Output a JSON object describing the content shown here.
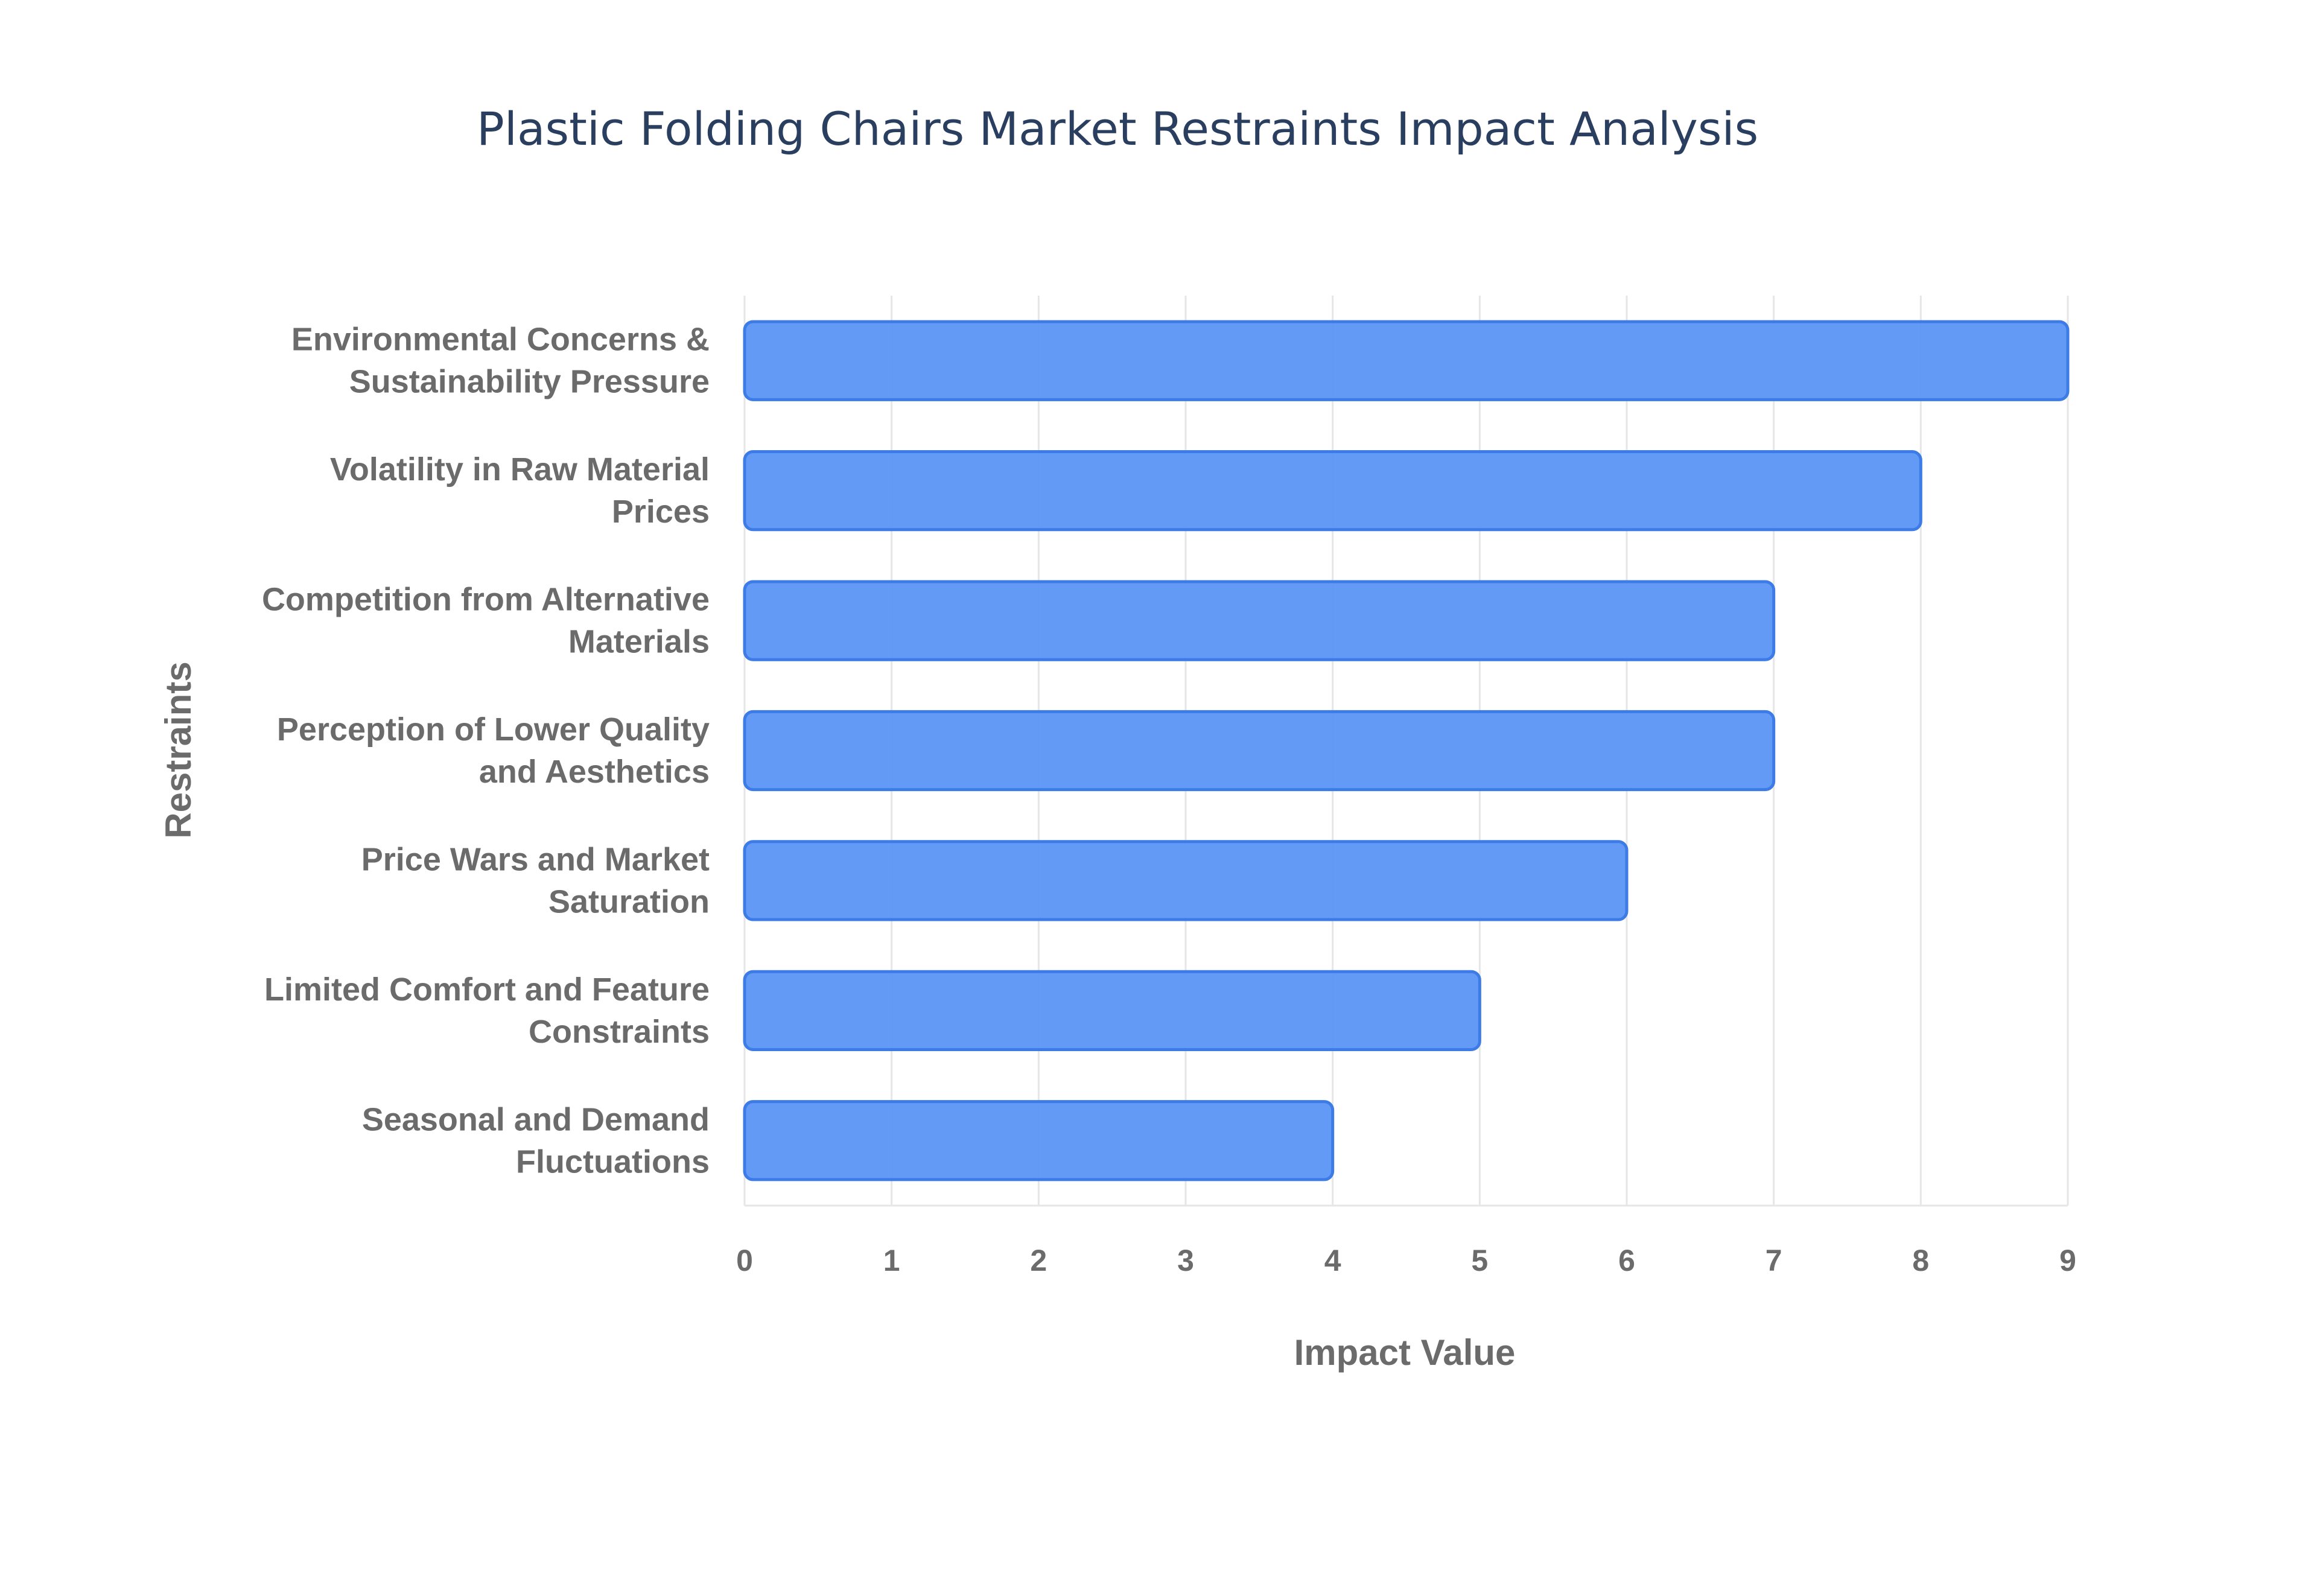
{
  "chart_data": {
    "type": "bar",
    "orientation": "horizontal",
    "title": "Plastic Folding Chairs Market Restraints Impact Analysis",
    "xlabel": "Impact Value",
    "ylabel": "Restraints",
    "xlim": [
      0,
      9
    ],
    "xticks": [
      "0",
      "1",
      "2",
      "3",
      "4",
      "5",
      "6",
      "7",
      "8",
      "9"
    ],
    "grid": true,
    "legend": "none",
    "bar_color": "#5b95f5",
    "categories": [
      {
        "label_lines": [
          "Environmental Concerns &",
          "Sustainability Pressure"
        ]
      },
      {
        "label_lines": [
          "Volatility in Raw Material",
          "Prices"
        ]
      },
      {
        "label_lines": [
          "Competition from Alternative",
          "Materials"
        ]
      },
      {
        "label_lines": [
          "Perception of Lower Quality",
          "and Aesthetics"
        ]
      },
      {
        "label_lines": [
          "Price Wars and Market",
          "Saturation"
        ]
      },
      {
        "label_lines": [
          "Limited Comfort and Feature",
          "Constraints"
        ]
      },
      {
        "label_lines": [
          "Seasonal and Demand",
          "Fluctuations"
        ]
      }
    ],
    "values": [
      9,
      8,
      7,
      7,
      6,
      5,
      4
    ]
  }
}
